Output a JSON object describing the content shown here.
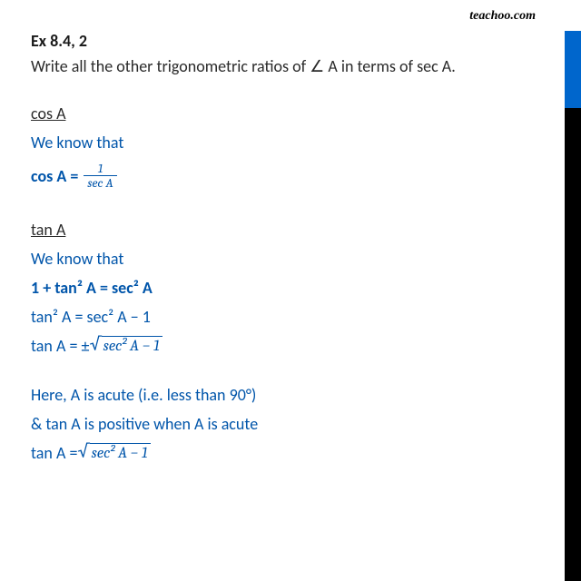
{
  "watermark": "teachoo.com",
  "title": "Ex 8.4, 2",
  "question": "Write all the other trigonometric ratios of ∠ A in terms of sec A.",
  "sections": {
    "cos": {
      "heading": "cos A",
      "line1": "We know that",
      "eq_lhs": "cos A = ",
      "frac_num": "1",
      "frac_den": "sec A"
    },
    "tan": {
      "heading": "tan A",
      "line1": "We know that",
      "identity": "1 + tan² A = sec² A",
      "step1": "tan² A = sec² A  − 1",
      "step2_lhs": "tan A = ± ",
      "radicand": "sec² A  − 1",
      "note1": "Here, A is acute (i.e. less than 90°)",
      "note2": "& tan A is positive when A is acute",
      "final_lhs": "tan A = "
    }
  },
  "colors": {
    "text_blue": "#0055aa",
    "text_dark": "#2a2a2a",
    "accent_blue": "#0066cc",
    "black": "#000000",
    "bg": "#ffffff"
  }
}
